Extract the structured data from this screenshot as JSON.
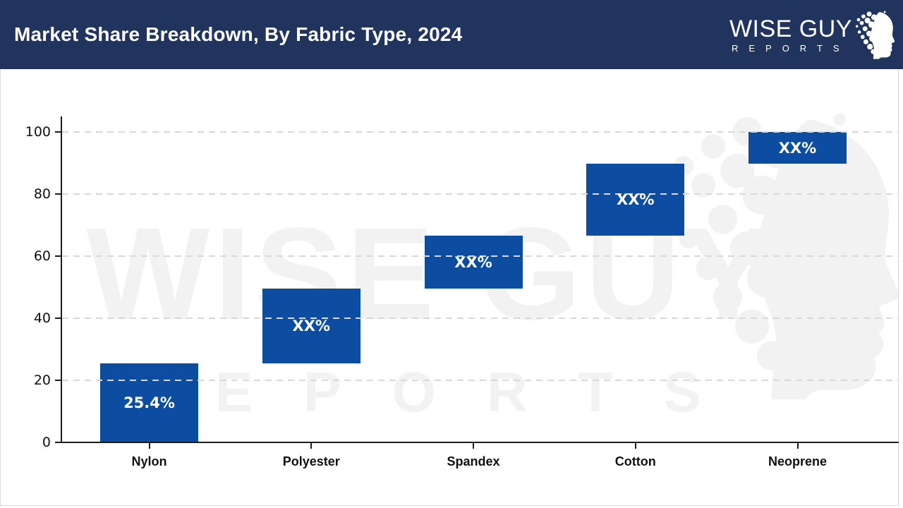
{
  "header": {
    "title": "Market Share Breakdown, By Fabric Type, 2024",
    "bg_color": "#21345e",
    "logo": {
      "line1": "WISE GUY",
      "line2": "REPORTS"
    }
  },
  "watermark": {
    "line1": "WISE GUY",
    "line2": "REPORTS"
  },
  "chart_data": {
    "type": "bar",
    "subtype": "waterfall",
    "title": "Market Share Breakdown, By Fabric Type, 2024",
    "xlabel": "",
    "ylabel": "",
    "categories": [
      "Nylon",
      "Polyester",
      "Spandex",
      "Cotton",
      "Neoprene"
    ],
    "segments": [
      {
        "category": "Nylon",
        "start": 0,
        "end": 25.4,
        "label": "25.4%"
      },
      {
        "category": "Polyester",
        "start": 25.4,
        "end": 49.6,
        "label": "XX%"
      },
      {
        "category": "Spandex",
        "start": 49.6,
        "end": 66.5,
        "label": "XX%"
      },
      {
        "category": "Cotton",
        "start": 66.5,
        "end": 89.7,
        "label": "XX%"
      },
      {
        "category": "Neoprene",
        "start": 89.7,
        "end": 100,
        "label": "XX%"
      }
    ],
    "yticks": [
      0,
      20,
      40,
      60,
      80,
      100
    ],
    "ylim": [
      0,
      105
    ],
    "grid": "dashed-horizontal",
    "legend": "none",
    "bar_color": "#0c4da2",
    "label_color": "#ffffff",
    "grid_color": "#d8d8d8",
    "axis_color": "#1c1c1c"
  }
}
